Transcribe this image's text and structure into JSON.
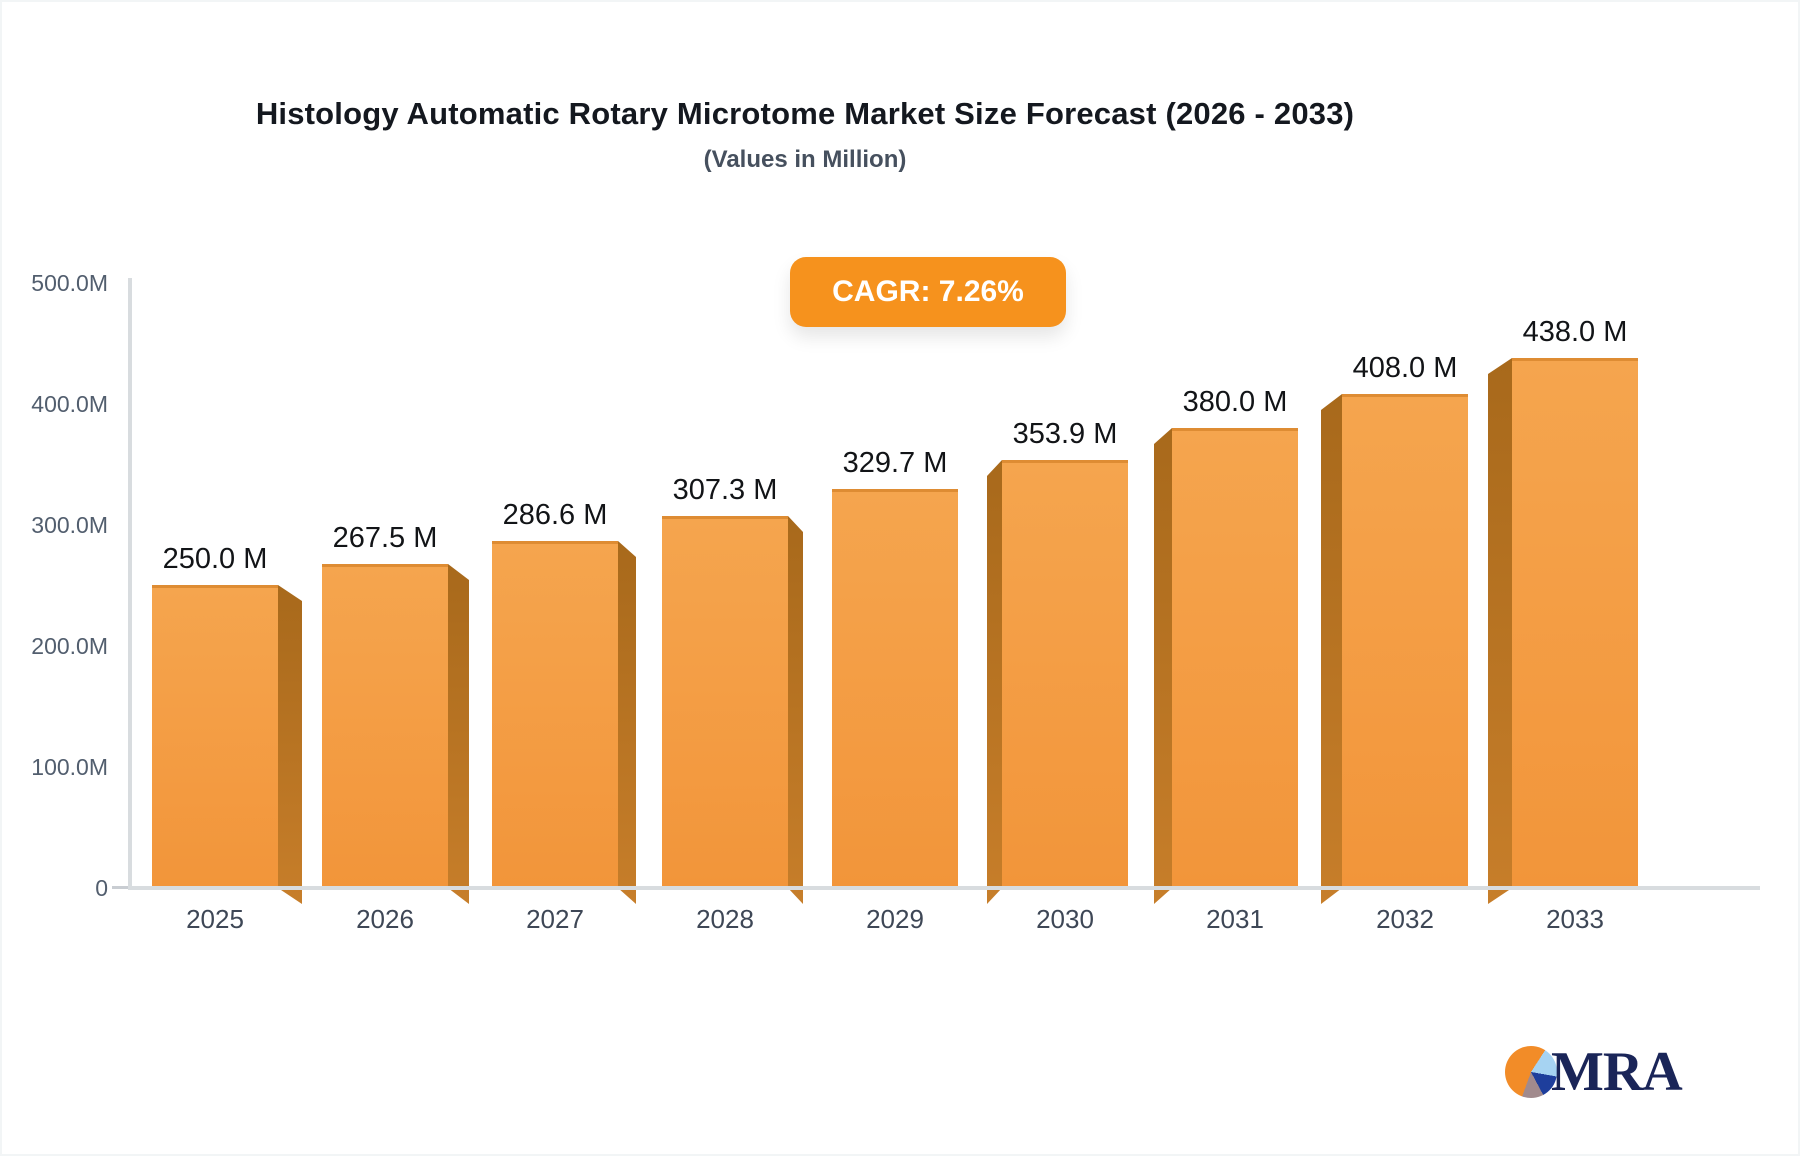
{
  "title": "Histology Automatic Rotary Microtome Market Size Forecast (2026 - 2033)",
  "subtitle": "(Values in Million)",
  "badge": {
    "label": "CAGR: 7.26%"
  },
  "chart_data": {
    "type": "bar",
    "title": "Histology Automatic Rotary Microtome Market Size Forecast (2026 - 2033)",
    "subtitle": "(Values in Million)",
    "categories": [
      "2025",
      "2026",
      "2027",
      "2028",
      "2029",
      "2030",
      "2031",
      "2032",
      "2033"
    ],
    "values": [
      250.0,
      267.5,
      286.6,
      307.3,
      329.7,
      353.9,
      380.0,
      408.0,
      438.0
    ],
    "bar_labels": [
      "250.0 M",
      "267.5 M",
      "286.6 M",
      "307.3 M",
      "329.7 M",
      "353.9 M",
      "380.0 M",
      "408.0 M",
      "438.0 M"
    ],
    "y_ticks": [
      "500.0M",
      "400.0M",
      "300.0M",
      "200.0M",
      "100.0M",
      "0"
    ],
    "ylim": [
      0,
      500
    ],
    "xlabel": "",
    "ylabel": "",
    "grid": false,
    "legend": "none",
    "cagr": "7.26%",
    "bar_color": "#f2953a",
    "bar_side_color": "#b3701f",
    "style": "3d-extruded"
  },
  "logo": {
    "text": "MRA"
  }
}
